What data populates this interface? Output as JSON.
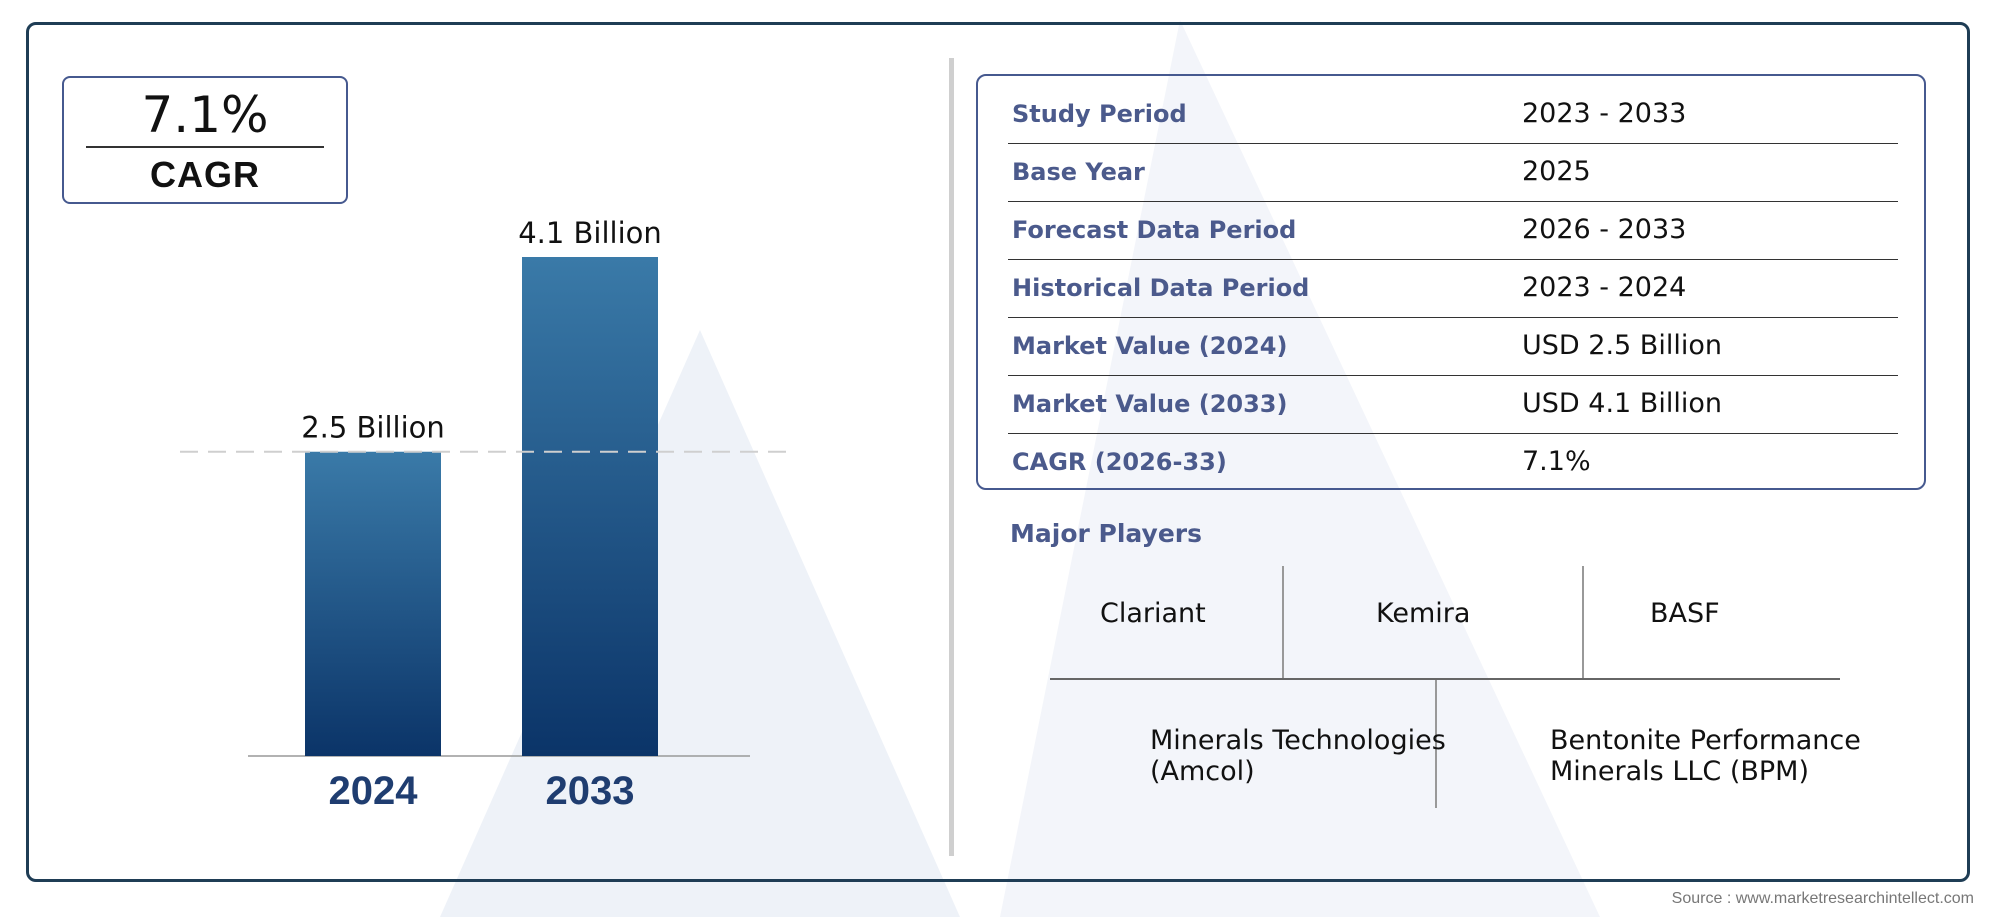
{
  "cagr_box": {
    "value": "7.1%",
    "label": "CAGR"
  },
  "chart_data": {
    "type": "bar",
    "categories": [
      "2024",
      "2033"
    ],
    "values": [
      2.5,
      4.1
    ],
    "data_labels": [
      "2.5 Billion",
      "4.1 Billion"
    ],
    "ylim": [
      0,
      4.1
    ],
    "reference_line_value": 2.5,
    "grid": false,
    "colors": {
      "bar_top": "#3a7aa8",
      "bar_bottom": "#0b3468",
      "category_label": "#1f3d70"
    }
  },
  "summary_table": {
    "rows": [
      {
        "label": "Study Period",
        "value": "2023 - 2033"
      },
      {
        "label": "Base Year",
        "value": "2025"
      },
      {
        "label": "Forecast Data Period",
        "value": "2026 - 2033"
      },
      {
        "label": "Historical Data Period",
        "value": "2023 - 2024"
      },
      {
        "label": "Market Value (2024)",
        "value": "USD 2.5 Billion"
      },
      {
        "label": "Market Value (2033)",
        "value": "USD 4.1 Billion"
      },
      {
        "label": "CAGR (2026-33)",
        "value": "7.1%"
      }
    ]
  },
  "major_players": {
    "title": "Major Players",
    "row1": [
      "Clariant",
      "Kemira",
      "BASF"
    ],
    "row2": [
      {
        "line1": "Minerals Technologies",
        "line2": "(Amcol)"
      },
      {
        "line1": "Bentonite Performance",
        "line2": "Minerals LLC (BPM)"
      }
    ]
  },
  "source": "Source : www.marketresearchintellect.com",
  "colors": {
    "frame": "#1f3d55",
    "accent": "#46598f",
    "label_text": "#4b5a8c"
  }
}
